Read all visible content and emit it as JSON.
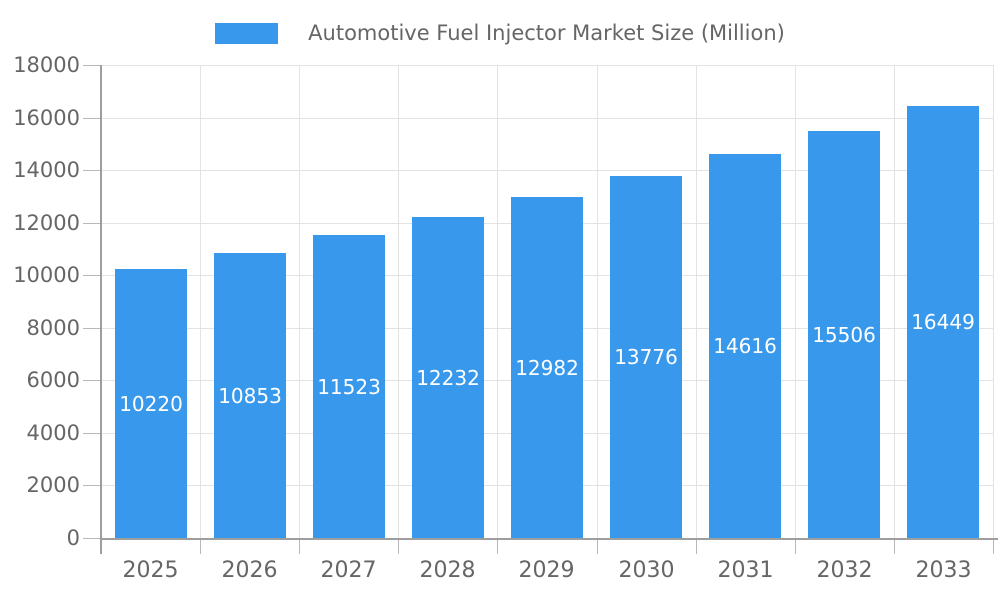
{
  "chart_data": {
    "type": "bar",
    "title": "Automotive Fuel Injector Market Size (Million)",
    "xlabel": "",
    "ylabel": "",
    "categories": [
      "2025",
      "2026",
      "2027",
      "2028",
      "2029",
      "2030",
      "2031",
      "2032",
      "2033"
    ],
    "series": [
      {
        "name": "Automotive Fuel Injector Market Size (Million)",
        "values": [
          10220,
          10853,
          11523,
          12232,
          12982,
          13776,
          14616,
          15506,
          16449
        ]
      }
    ],
    "data_labels_visible": true,
    "ylim": [
      0,
      18000
    ],
    "y_tick_step": 2000,
    "y_tick_values": [
      0,
      2000,
      4000,
      6000,
      8000,
      10000,
      12000,
      14000,
      16000,
      18000
    ],
    "y_tick_labels": [
      "0",
      "2000",
      "4000",
      "6000",
      "8000",
      "10000",
      "12000",
      "14000",
      "16000",
      "18000"
    ],
    "grid": true,
    "legend_position": "top",
    "colors": {
      "bar": "#3899EC",
      "bar_value_label": "#ffffff",
      "axis_text": "#666666",
      "gridline": "#e3e3e3",
      "axis_line": "#9e9e9e",
      "tick": "#b8b8b8",
      "background": "#ffffff"
    }
  }
}
